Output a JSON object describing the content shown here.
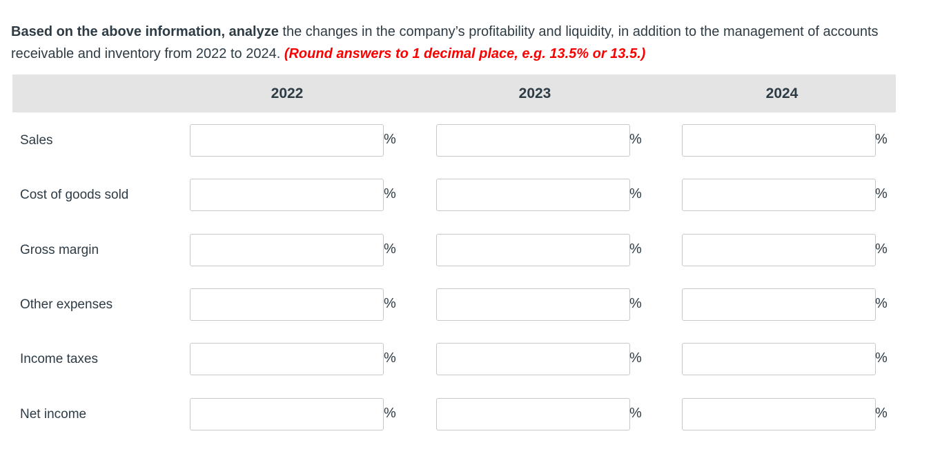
{
  "question": {
    "text_bold": "Based on the above information, analyze",
    "text_regular": " the changes in the company’s profitability and liquidity, in addition to the management of accounts receivable and inventory from 2022 to 2024. ",
    "text_red": "(Round answers to 1 decimal place, e.g. 13.5% or 13.5.)"
  },
  "colors": {
    "text": "#2d3b45",
    "note_red": "#fa0000",
    "header_bg": "#e4e4e4",
    "input_border": "#c4c8cb"
  },
  "table": {
    "year_headers": [
      "2022",
      "2023",
      "2024"
    ],
    "percent_symbol": "%",
    "rows": [
      {
        "label": "Sales",
        "values": [
          "",
          "",
          ""
        ]
      },
      {
        "label": "Cost of goods sold",
        "values": [
          "",
          "",
          ""
        ]
      },
      {
        "label": "Gross margin",
        "values": [
          "",
          "",
          ""
        ]
      },
      {
        "label": "Other expenses",
        "values": [
          "",
          "",
          ""
        ]
      },
      {
        "label": "Income taxes",
        "values": [
          "",
          "",
          ""
        ]
      },
      {
        "label": "Net income",
        "values": [
          "",
          "",
          ""
        ]
      }
    ]
  }
}
